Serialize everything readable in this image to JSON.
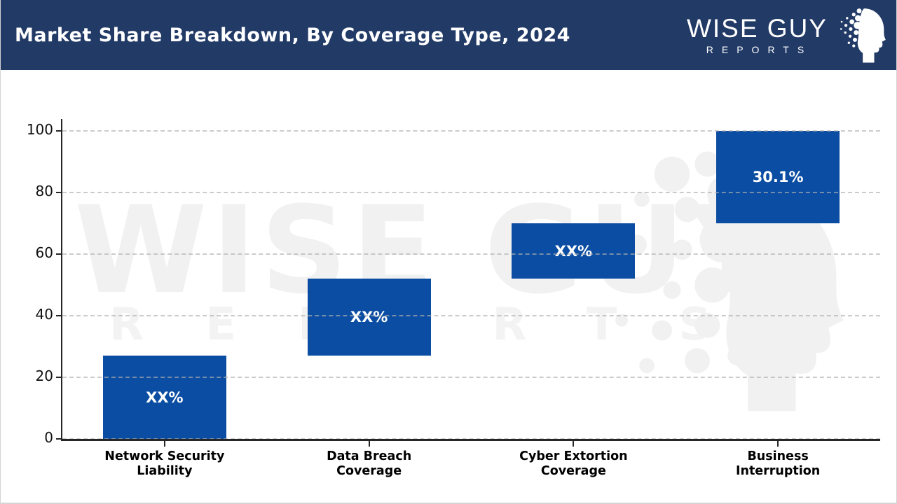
{
  "header": {
    "title": "Market Share Breakdown, By Coverage Type, 2024",
    "brand": {
      "line1": "WISE GUY",
      "line2": "REPORTS"
    }
  },
  "watermark": {
    "line1": "WISE GUY",
    "line2": "REPORTS"
  },
  "chart_data": {
    "type": "bar",
    "variant": "floating-segment-waterfall",
    "title": "Market Share Breakdown, By Coverage Type, 2024",
    "categories": [
      [
        "Network Security",
        "Liability"
      ],
      [
        "Data Breach",
        "Coverage"
      ],
      [
        "Cyber Extortion",
        "Coverage"
      ],
      [
        "Business",
        "Interruption"
      ]
    ],
    "bars": [
      {
        "start": 0,
        "end": 27,
        "label": "XX%"
      },
      {
        "start": 27,
        "end": 52,
        "label": "XX%"
      },
      {
        "start": 52,
        "end": 70,
        "label": "XX%"
      },
      {
        "start": 69.9,
        "end": 100,
        "label": "30.1%"
      }
    ],
    "yticks": [
      0,
      20,
      40,
      60,
      80,
      100
    ],
    "ylim": [
      0,
      100
    ],
    "xlabel": "",
    "ylabel": "",
    "grid": "horizontal-dashed",
    "legend": "none",
    "bar_color": "#0b4da2",
    "label_color": "#ffffff"
  },
  "colors": {
    "header_bg": "#223a66",
    "bar": "#0b4da2",
    "axis": "#262626",
    "grid": "#afafaf",
    "watermark": "#f1f1f2"
  }
}
